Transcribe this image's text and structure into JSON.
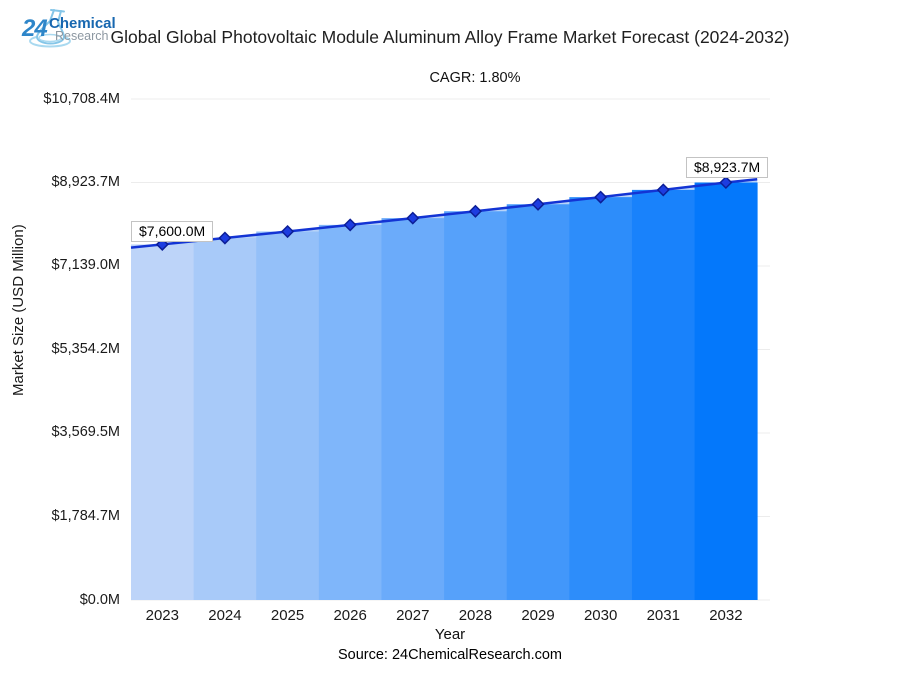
{
  "logo": {
    "number": "24",
    "name_top": "Chemical",
    "name_bottom": "Research",
    "flask_icon_color": "#85c6e8",
    "swoosh_color": "#a9d9f0"
  },
  "header": {
    "title": "Global Global Photovoltaic Module Aluminum Alloy Frame Market Forecast (2024-2032)",
    "subtitle": "CAGR: 1.80%"
  },
  "footer": {
    "source": "Source: 24ChemicalResearch.com"
  },
  "chart_data": {
    "type": "bar",
    "overlay": "line",
    "title": "Global Global Photovoltaic Module Aluminum Alloy Frame Market Forecast (2024-2032)",
    "subtitle": "CAGR: 1.80%",
    "categories": [
      "2023",
      "2024",
      "2025",
      "2026",
      "2027",
      "2028",
      "2029",
      "2030",
      "2031",
      "2032"
    ],
    "values": [
      7600.0,
      7736.8,
      7876.1,
      8017.8,
      8162.2,
      8309.1,
      8458.6,
      8610.9,
      8765.9,
      8923.7
    ],
    "xlabel": "Year",
    "ylabel": "Market Size (USD Million)",
    "ylim": [
      0,
      10708.4
    ],
    "y_ticks": {
      "values": [
        0,
        1784.7,
        3569.5,
        5354.2,
        7139.0,
        8923.7,
        10708.4
      ],
      "labels": [
        "$0.0M",
        "$1,784.7M",
        "$3,569.5M",
        "$5,354.2M",
        "$7,139.0M",
        "$8,923.7M",
        "$10,708.4M"
      ]
    },
    "grid": true,
    "legend": false,
    "annotations": [
      {
        "text": "$7,600.0M",
        "category": "2023"
      },
      {
        "text": "$8,923.7M",
        "category": "2032"
      }
    ],
    "colors": {
      "bars": [
        "#bdd4f9",
        "#a8caf9",
        "#94c0f9",
        "#7fb6fa",
        "#6babfa",
        "#56a1fa",
        "#4297fa",
        "#2d8dfa",
        "#1982fb",
        "#0478fb"
      ],
      "line": "#1334d4",
      "marker_fill": "#1d3de0",
      "marker_stroke": "#0c1e96",
      "area": "#b7d3f8",
      "grid": "#ececec"
    }
  }
}
